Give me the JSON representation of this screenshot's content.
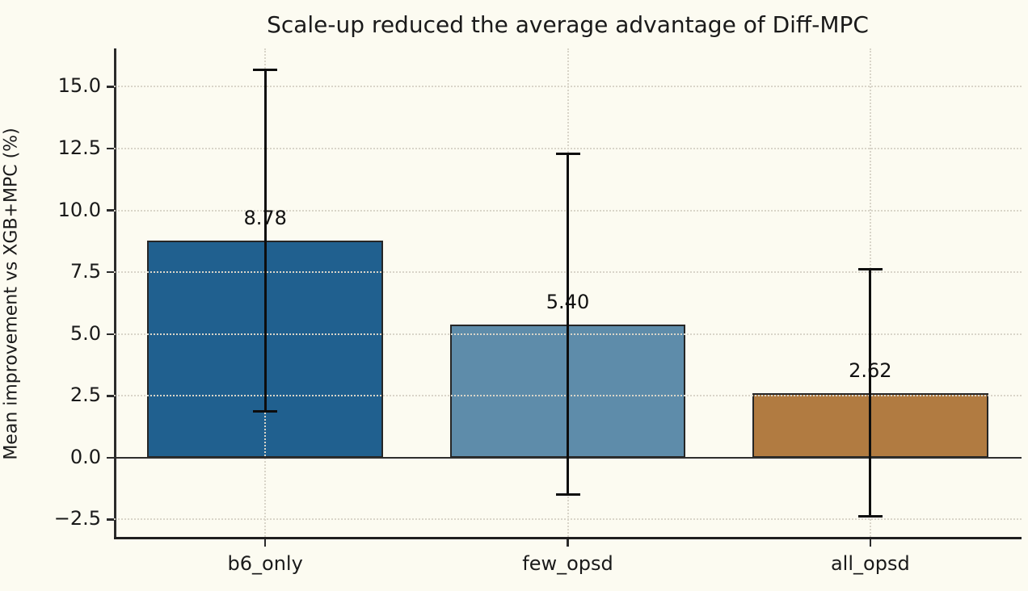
{
  "figure": {
    "background_color": "#fcfbf1",
    "text_color": "#1a1a1a",
    "grid_color": "#d9d5c9",
    "axis_color": "#2b2b2b"
  },
  "chart_data": {
    "type": "bar",
    "title": "Scale-up reduced the average advantage of Diff-MPC",
    "xlabel": "",
    "ylabel": "Mean improvement vs XGB+MPC (%)",
    "categories": [
      "b6_only",
      "few_opsd",
      "all_opsd"
    ],
    "values": [
      8.78,
      5.4,
      2.62
    ],
    "value_labels": [
      "8.78",
      "5.40",
      "2.62"
    ],
    "error_plus_minus": [
      6.9,
      6.9,
      5.0
    ],
    "error_tips_upper": [
      15.7,
      12.35,
      7.55
    ],
    "error_tips_lower": [
      1.85,
      -1.55,
      -2.35
    ],
    "bar_colors": [
      "#20608f",
      "#5e8caa",
      "#b17b41"
    ],
    "bar_edge_color": "#262626",
    "yticks": [
      -2.5,
      0.0,
      2.5,
      5.0,
      7.5,
      10.0,
      12.5,
      15.0
    ],
    "ytick_labels": [
      "−2.5",
      "0.0",
      "2.5",
      "5.0",
      "7.5",
      "10.0",
      "12.5",
      "15.0"
    ],
    "ylim": [
      -3.3,
      16.55
    ],
    "grid": true,
    "grid_style": "dotted",
    "legend": null
  }
}
